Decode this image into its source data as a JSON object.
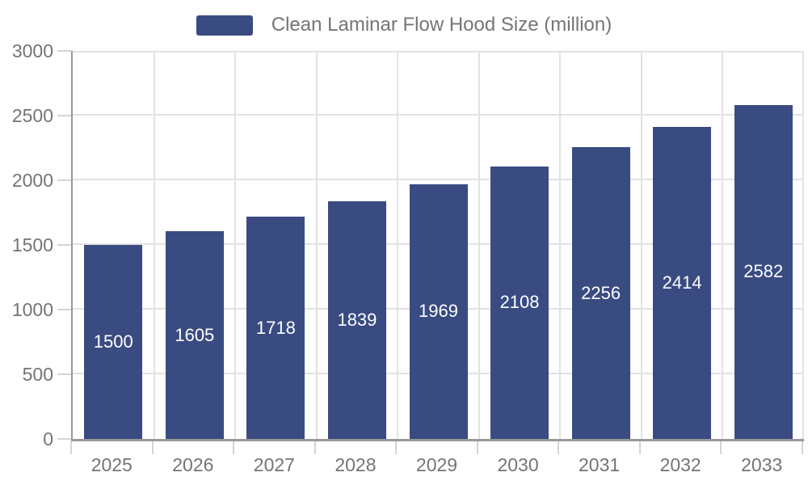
{
  "legend": {
    "label": "Clean Laminar Flow Hood Size (million)"
  },
  "chart_data": {
    "type": "bar",
    "title": "Clean Laminar Flow Hood Size (million)",
    "categories": [
      "2025",
      "2026",
      "2027",
      "2028",
      "2029",
      "2030",
      "2031",
      "2032",
      "2033"
    ],
    "series": [
      {
        "name": "Clean Laminar Flow Hood Size (million)",
        "values": [
          1500,
          1605,
          1718,
          1839,
          1969,
          2108,
          2256,
          2414,
          2582
        ]
      }
    ],
    "value_labels_shown": true,
    "xlabel": "",
    "ylabel": "",
    "ylim": [
      0,
      3000
    ],
    "yticks": [
      0,
      500,
      1000,
      1500,
      2000,
      2500,
      3000
    ],
    "grid": true,
    "legend_position": "top-center"
  },
  "colors": {
    "bar_fill": "#394B81",
    "bar_value_label": "#ffffff",
    "axis_line": "#999999",
    "gridline": "#e2e2e2",
    "tick": "#d4d4d4",
    "axis_label": "#747474",
    "legend_text": "#757575",
    "background": "#ffffff"
  }
}
